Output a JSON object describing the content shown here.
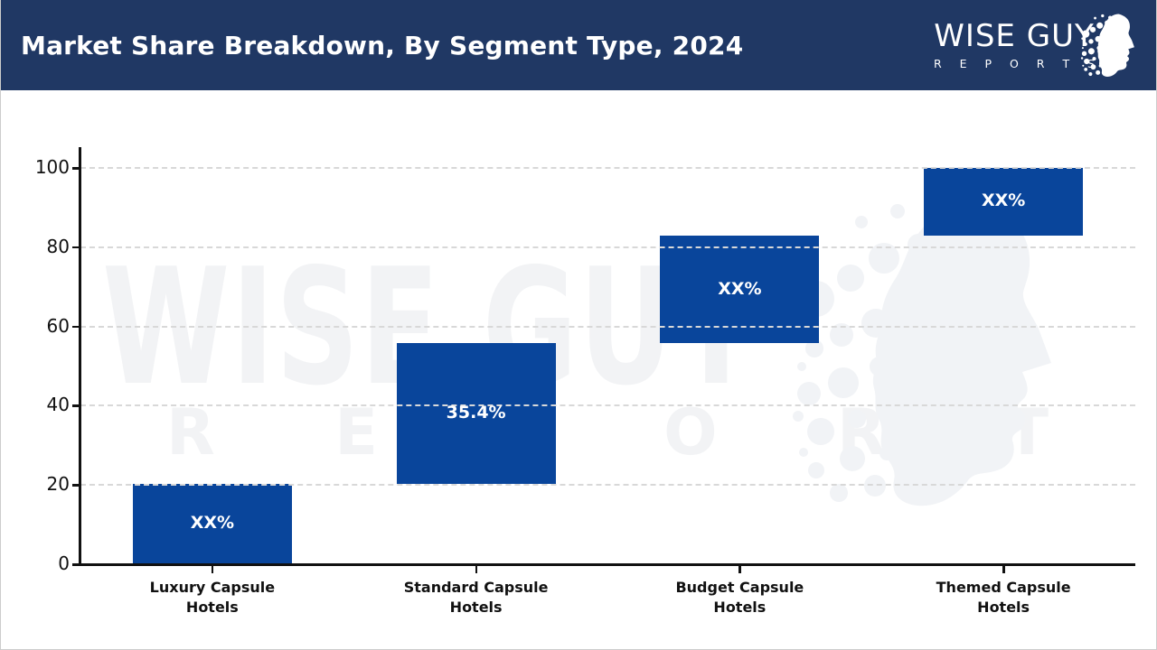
{
  "header": {
    "title": "Market Share Breakdown, By Segment Type, 2024",
    "logo": {
      "name": "WISE GUY",
      "sub": "R E P O R T S"
    },
    "bg_color": "#203864"
  },
  "watermark": {
    "line1": "WISE GUY",
    "line2": "R E P O R T S"
  },
  "chart_data": {
    "type": "bar",
    "subtype": "waterfall",
    "title": "Market Share Breakdown, By Segment Type, 2024",
    "categories": [
      "Luxury Capsule Hotels",
      "Standard Capsule Hotels",
      "Budget Capsule Hotels",
      "Themed Capsule Hotels"
    ],
    "category_lines": [
      [
        "Luxury Capsule",
        "Hotels"
      ],
      [
        "Standard Capsule",
        "Hotels"
      ],
      [
        "Budget Capsule",
        "Hotels"
      ],
      [
        "Themed Capsule",
        "Hotels"
      ]
    ],
    "segments": [
      {
        "category": "Luxury Capsule Hotels",
        "start": 0,
        "end": 20.3,
        "value": 20.3,
        "label": "XX%"
      },
      {
        "category": "Standard Capsule Hotels",
        "start": 20.3,
        "end": 55.7,
        "value": 35.4,
        "label": "35.4%"
      },
      {
        "category": "Budget Capsule Hotels",
        "start": 55.7,
        "end": 83.0,
        "value": 27.3,
        "label": "XX%"
      },
      {
        "category": "Themed Capsule Hotels",
        "start": 83.0,
        "end": 100,
        "value": 17.0,
        "label": "XX%"
      }
    ],
    "ylim": [
      0,
      100
    ],
    "yticks": [
      0,
      20,
      40,
      60,
      80,
      100
    ],
    "bar_color": "#09459B",
    "axis_color": "#111111",
    "grid": {
      "axis": "y",
      "style": "dashed",
      "color": "#d8d8d8"
    },
    "legend": null
  }
}
